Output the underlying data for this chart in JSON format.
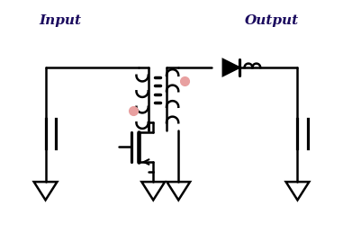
{
  "title": "",
  "bg_color": "#ffffff",
  "line_color": "#000000",
  "text_color": "#1a0a5e",
  "dot_color": "#e8a0a0",
  "input_label": "Input",
  "output_label": "Output",
  "figsize": [
    3.81,
    2.79
  ],
  "dpi": 100
}
